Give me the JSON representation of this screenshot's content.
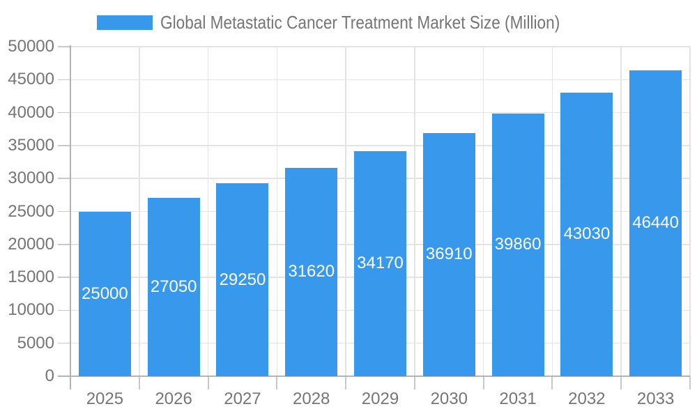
{
  "chart_data": {
    "type": "bar",
    "title": "Global Metastatic Cancer Treatment Market Size (Million)",
    "categories": [
      "2025",
      "2026",
      "2027",
      "2028",
      "2029",
      "2030",
      "2031",
      "2032",
      "2033"
    ],
    "values": [
      25000,
      27050,
      29250,
      31620,
      34170,
      36910,
      39860,
      43030,
      46440
    ],
    "series_name": "Global Metastatic Cancer Treatment Market Size (Million)",
    "xlabel": "",
    "ylabel": "",
    "ylim": [
      0,
      50000
    ],
    "y_ticks": [
      0,
      5000,
      10000,
      15000,
      20000,
      25000,
      30000,
      35000,
      40000,
      45000,
      50000
    ],
    "grid": true,
    "legend_position": "top",
    "data_labels": "inside-center-white",
    "colors": {
      "bar": "#3899EC",
      "axis_line": "#b3b3b3",
      "tick": "#c9c9c9",
      "gridline": "#e3e3e3",
      "axis_text": "#757575",
      "data_label": "#ffffff"
    }
  }
}
